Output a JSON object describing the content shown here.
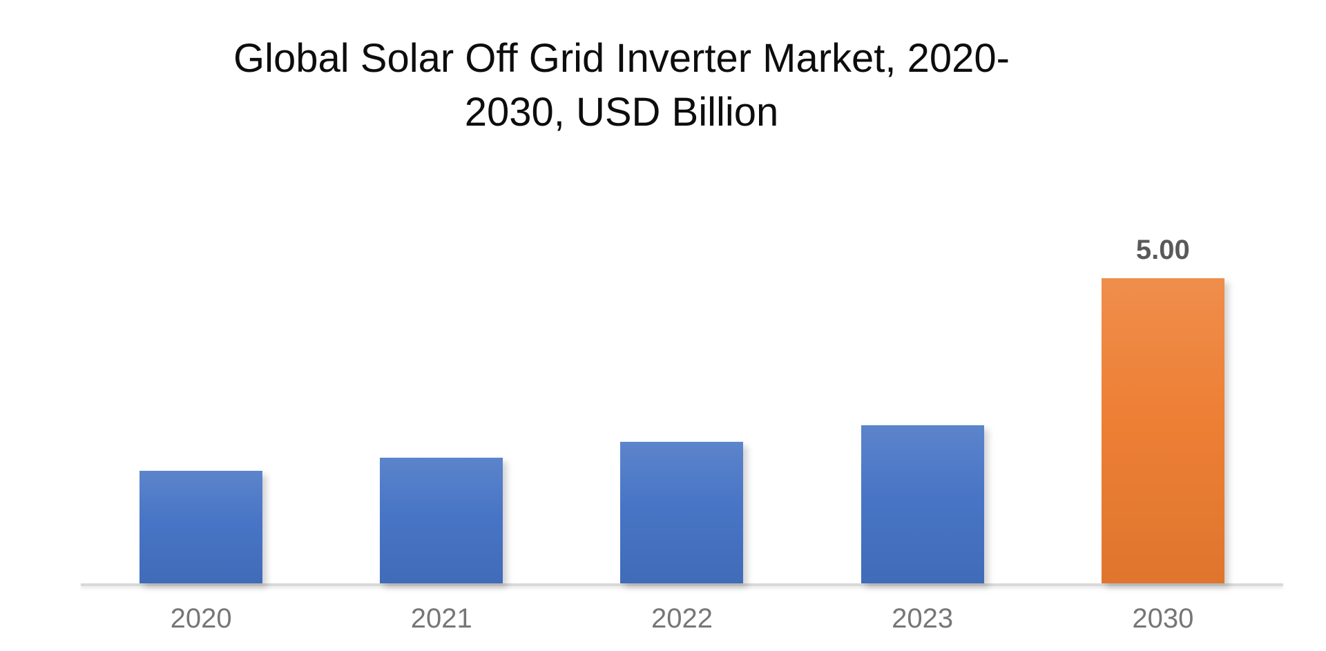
{
  "title": {
    "line1": "Global Solar Off Grid Inverter Market, 2020-",
    "line2": "2030, USD Billion"
  },
  "chart_data": {
    "type": "bar",
    "title": "Global Solar Off Grid Inverter Market, 2020-2030, USD Billion",
    "unit": "USD Billion",
    "categories": [
      "2020",
      "2021",
      "2022",
      "2023",
      "2030"
    ],
    "values": [
      1.62,
      1.81,
      2.04,
      2.28,
      5.0
    ],
    "point_labels": [
      "",
      "",
      "",
      "",
      "5.00"
    ],
    "bar_colors": [
      "#4472C4",
      "#4472C4",
      "#4472C4",
      "#4472C4",
      "#ED7D31"
    ],
    "xlabel": "",
    "ylabel": "",
    "ylim": [
      0,
      5.0
    ],
    "grid": false,
    "legend": false,
    "y_axis_visible": false,
    "axis_line_color": "#D9D9D9",
    "tick_label_color": "#767676",
    "data_label_color": "#595959",
    "title_color": "#0d0d0d"
  }
}
